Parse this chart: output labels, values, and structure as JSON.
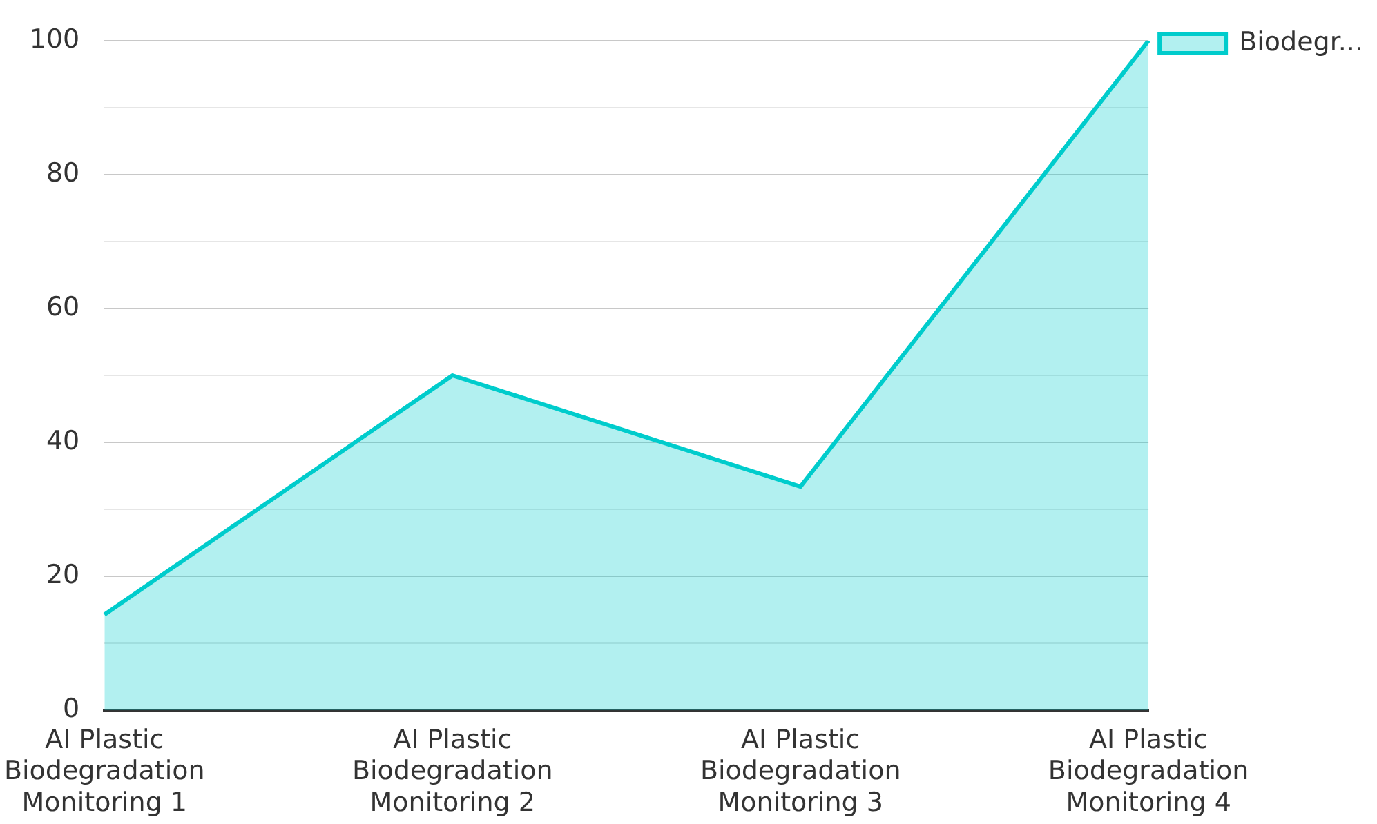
{
  "chart_data": {
    "type": "area",
    "categories": [
      "AI Plastic Biodegradation Monitoring 1",
      "AI Plastic Biodegradation Monitoring 2",
      "AI Plastic Biodegradation Monitoring 3",
      "AI Plastic Biodegradation Monitoring 4"
    ],
    "series": [
      {
        "name": "Biodegr...",
        "color": "#00cccc",
        "values": [
          14.3,
          50,
          33.4,
          100
        ]
      }
    ],
    "ylim": [
      0,
      100
    ],
    "yticks": [
      0,
      {
        "value": 10,
        "label": null
      },
      20,
      {
        "value": 30,
        "label": null
      },
      40,
      {
        "value": 50,
        "label": null
      },
      60,
      {
        "value": 70,
        "label": null
      },
      80,
      {
        "value": 90,
        "label": null
      },
      100
    ],
    "grid": "y",
    "legend": "top right",
    "marker": "none"
  }
}
